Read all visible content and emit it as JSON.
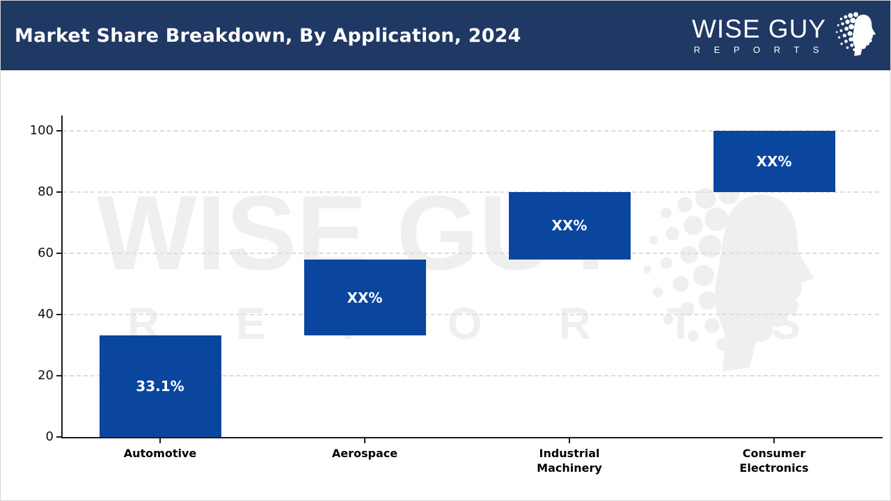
{
  "header": {
    "title": "Market Share Breakdown, By Application, 2024",
    "background_color": "#1f3864",
    "logo": {
      "line1": "WISE GUY",
      "line2": "R E P O R T S"
    }
  },
  "watermark": {
    "line1": "WISE GUY",
    "line2": "REPORTS"
  },
  "chart_data": {
    "type": "bar",
    "subtype": "waterfall",
    "title": "Market Share Breakdown, By Application, 2024",
    "categories": [
      "Automotive",
      "Aerospace",
      "Industrial\nMachinery",
      "Consumer\nElectronics"
    ],
    "segments": [
      {
        "category": "Automotive",
        "start": 0,
        "end": 33.1,
        "label": "33.1%"
      },
      {
        "category": "Aerospace",
        "start": 33.1,
        "end": 58,
        "label": "XX%"
      },
      {
        "category": "Industrial Machinery",
        "start": 58,
        "end": 80,
        "label": "XX%"
      },
      {
        "category": "Consumer Electronics",
        "start": 80,
        "end": 100,
        "label": "XX%"
      }
    ],
    "y_ticks": [
      0,
      20,
      40,
      60,
      80,
      100
    ],
    "ylim": [
      0,
      100
    ],
    "xlabel": "",
    "ylabel": "",
    "grid": "horizontal-dashed",
    "legend": "none",
    "bar_color": "#0b469e",
    "bar_label_color": "#ffffff",
    "axis_color": "#1a1a1a",
    "gridline_color": "#dcdcdc"
  }
}
